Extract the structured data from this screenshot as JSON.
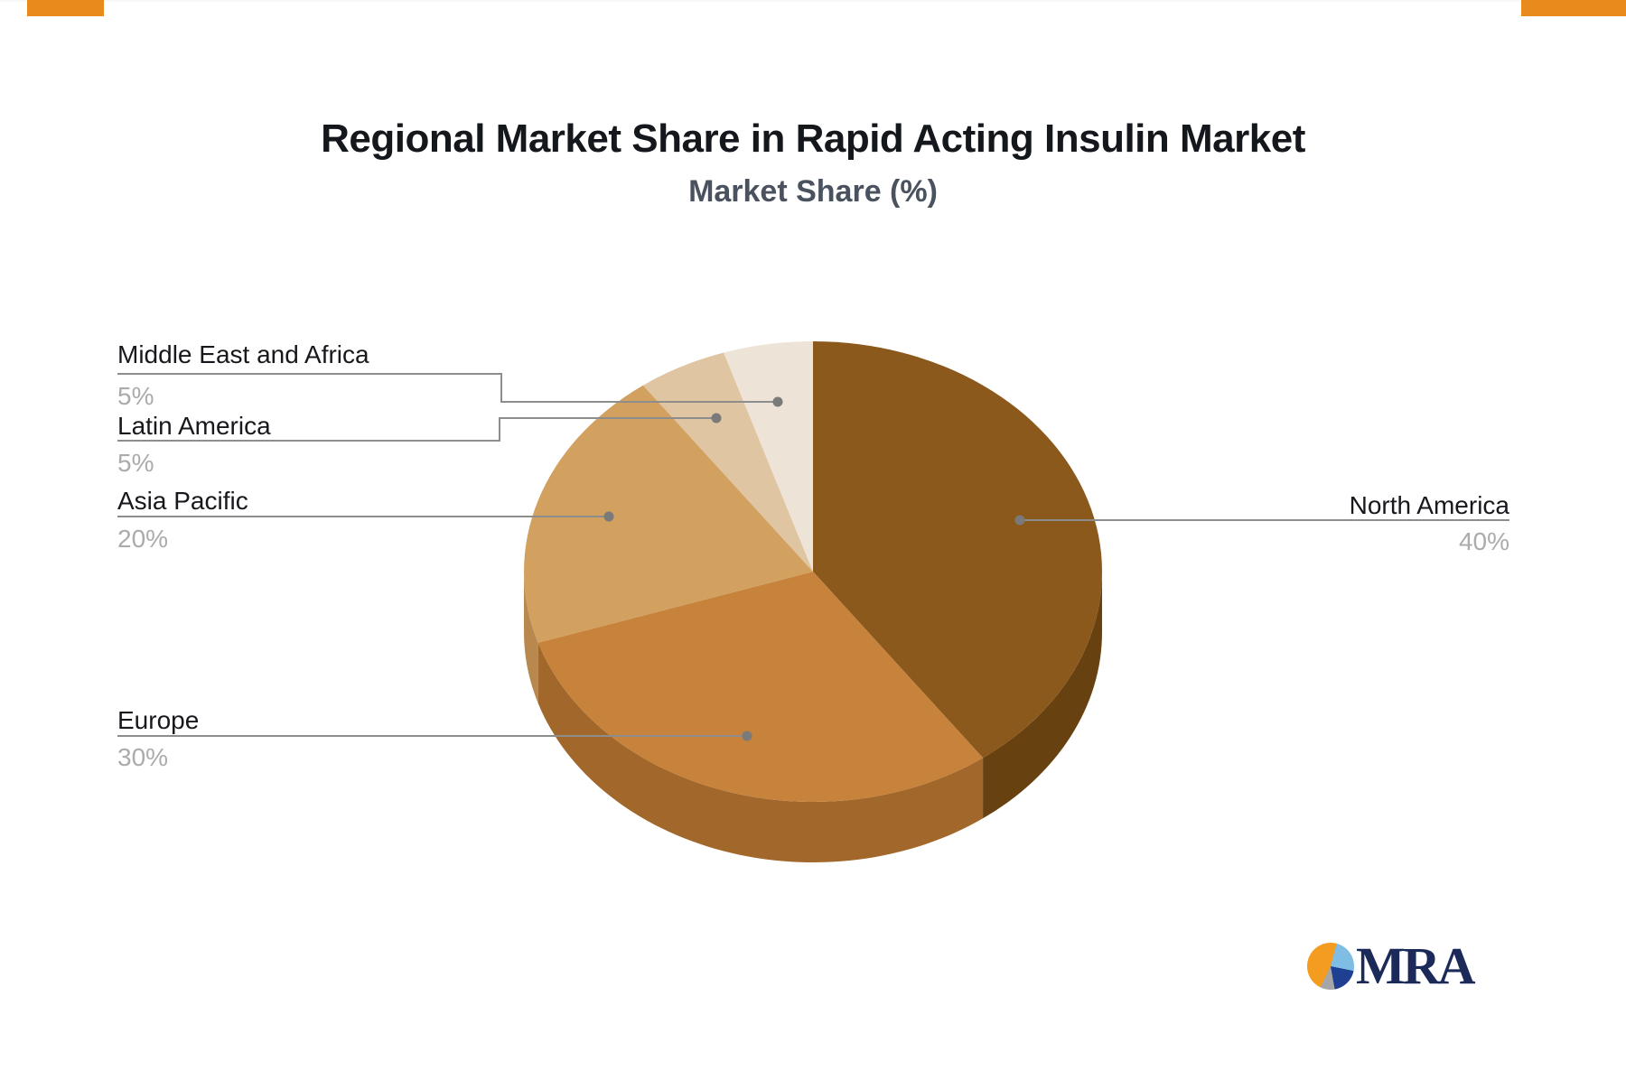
{
  "header": {
    "title": "Regional Market Share in Rapid Acting Insulin Market",
    "subtitle": "Market Share (%)"
  },
  "chart_data": {
    "type": "pie",
    "style": "3d-pie",
    "title": "Regional Market Share in Rapid Acting Insulin Market",
    "subtitle": "Market Share (%)",
    "unit": "%",
    "direction": "clockwise",
    "start_angle_deg": 0,
    "legend_position": "leader-line-labels",
    "slices": [
      {
        "label": "North America",
        "value": 40,
        "display": "40%",
        "color": "#8C591D",
        "side_color": "#684111"
      },
      {
        "label": "Europe",
        "value": 30,
        "display": "30%",
        "color": "#C7823B",
        "side_color": "#A2672A"
      },
      {
        "label": "Asia Pacific",
        "value": 20,
        "display": "20%",
        "color": "#D2A05F",
        "side_color": "#B8884E"
      },
      {
        "label": "Latin America",
        "value": 5,
        "display": "5%",
        "color": "#DFC5A1",
        "side_color": "#C4A37C"
      },
      {
        "label": "Middle East and Africa",
        "value": 5,
        "display": "5%",
        "color": "#EDE3D6",
        "side_color": "#D1C3B0"
      }
    ]
  },
  "branding": {
    "logo_text": "MRA",
    "logo_text_color": "#1c2a5a",
    "icon_colors": {
      "orange": "#F39C1F",
      "light_blue": "#7FBDE4",
      "navy": "#1F3F93",
      "gray": "#A6A6A6"
    }
  },
  "decor": {
    "top_bar_color": "#E98A1D",
    "leader_line_color": "#8d8d8d",
    "value_text_color": "#ababab",
    "label_text_color": "#16181c",
    "subtitle_color": "#49525e"
  }
}
